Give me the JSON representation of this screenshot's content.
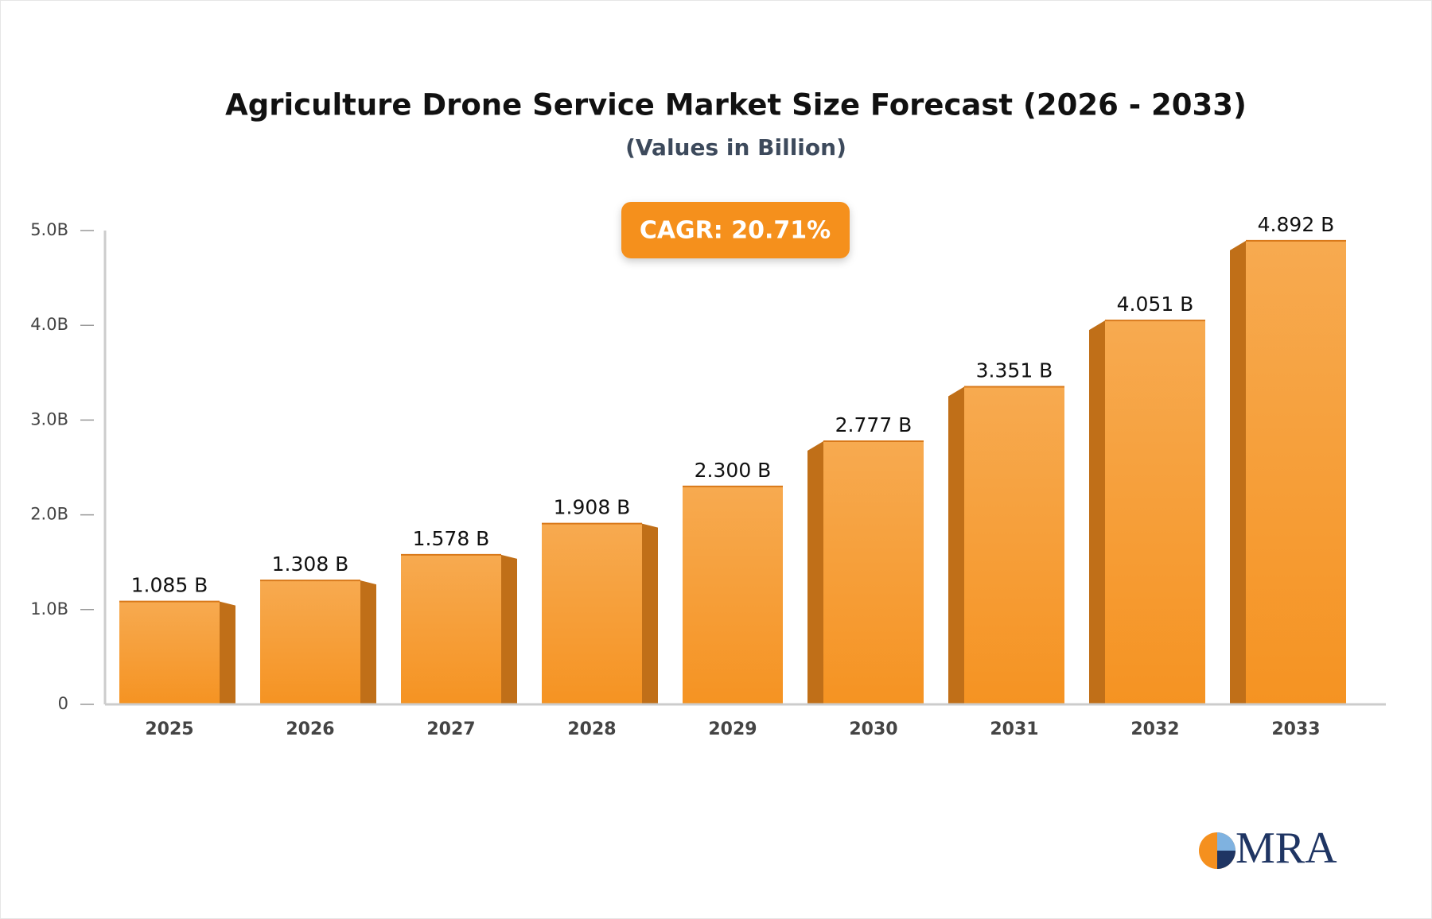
{
  "chart_data": {
    "type": "bar",
    "title": "Agriculture Drone Service Market Size Forecast (2026 - 2033)",
    "subtitle": "(Values in Billion)",
    "annotation": "CAGR: 20.71%",
    "logo": "MRA",
    "categories": [
      "2025",
      "2026",
      "2027",
      "2028",
      "2029",
      "2030",
      "2031",
      "2032",
      "2033"
    ],
    "values": [
      1.085,
      1.308,
      1.578,
      1.908,
      2.3,
      2.777,
      3.351,
      4.051,
      4.892
    ],
    "value_labels": [
      "1.085 B",
      "1.308 B",
      "1.578 B",
      "1.908 B",
      "2.300 B",
      "2.777 B",
      "3.351 B",
      "4.051 B",
      "4.892 B"
    ],
    "color": "#f59a2e",
    "ylim": [
      0,
      5
    ],
    "yticks": [
      0,
      {
        "value": 1,
        "label": "1.0B"
      },
      {
        "value": 2,
        "label": "2.0B"
      },
      {
        "value": 3,
        "label": "3.0B"
      },
      {
        "value": 4,
        "label": "4.0B"
      },
      {
        "value": 5,
        "label": "5.0B"
      }
    ],
    "grid": false
  }
}
